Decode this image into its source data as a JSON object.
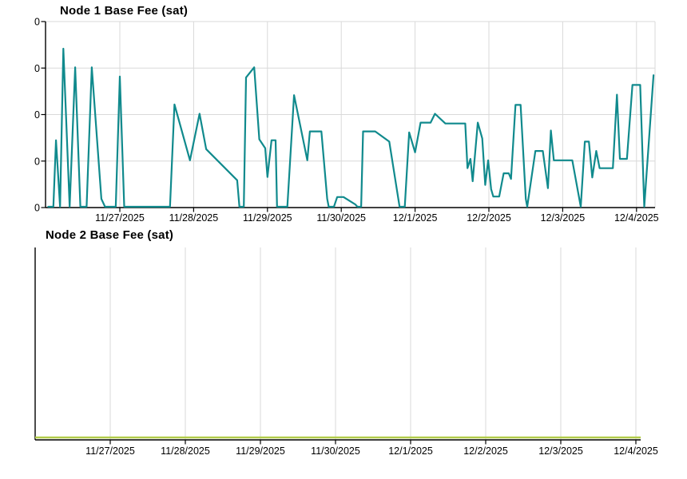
{
  "page": {
    "background_hex": "#ffffff",
    "grid_color_hex": "#d9d9d9",
    "axis_color_hex": "#000000",
    "text_color_hex": "#000000"
  },
  "chart_data": [
    {
      "type": "line",
      "title": "Node 1 Base Fee (sat)",
      "xlabel": "",
      "ylabel": "",
      "x_tick_labels": [
        "11/27/2025",
        "11/28/2025",
        "11/29/2025",
        "11/30/2025",
        "12/1/2025",
        "12/2/2025",
        "12/3/2025",
        "12/4/2025"
      ],
      "y_tick_labels": [
        "0",
        "0",
        "0",
        "0",
        "0"
      ],
      "ylim_grid_units": [
        0,
        4
      ],
      "x_domain_days": [
        0,
        8.27
      ],
      "x_axis_note": "day 0 = left edge (11/26/2025); x tick i sits at day i+1",
      "grid": "horizontal-and-vertical",
      "legend": "none",
      "series": [
        {
          "name": "Node 1 Base Fee",
          "color_hex": "#108a8d",
          "points_day_value": [
            [
              0.03,
              0
            ],
            [
              0.1,
              0
            ],
            [
              0.135,
              1.43
            ],
            [
              0.19,
              0
            ],
            [
              0.235,
              3.4
            ],
            [
              0.32,
              0
            ],
            [
              0.395,
              3.0
            ],
            [
              0.465,
              0
            ],
            [
              0.55,
              0
            ],
            [
              0.62,
              3.0
            ],
            [
              0.75,
              0.17
            ],
            [
              0.8,
              0
            ],
            [
              0.945,
              0
            ],
            [
              1.0,
              2.8
            ],
            [
              1.06,
              0
            ],
            [
              1.68,
              0
            ],
            [
              1.74,
              2.2
            ],
            [
              1.95,
              1.0
            ],
            [
              2.08,
              2.0
            ],
            [
              2.17,
              1.24
            ],
            [
              2.59,
              0.57
            ],
            [
              2.62,
              0
            ],
            [
              2.68,
              0
            ],
            [
              2.71,
              2.78
            ],
            [
              2.82,
              3.0
            ],
            [
              2.89,
              1.45
            ],
            [
              2.97,
              1.26
            ],
            [
              3.0,
              0.64
            ],
            [
              3.055,
              1.43
            ],
            [
              3.11,
              1.43
            ],
            [
              3.13,
              0
            ],
            [
              3.27,
              0
            ],
            [
              3.36,
              2.4
            ],
            [
              3.54,
              1.0
            ],
            [
              3.575,
              1.62
            ],
            [
              3.73,
              1.62
            ],
            [
              3.81,
              0.17
            ],
            [
              3.83,
              0
            ],
            [
              3.9,
              0
            ],
            [
              3.945,
              0.21
            ],
            [
              4.03,
              0.21
            ],
            [
              4.19,
              0.05
            ],
            [
              4.22,
              0
            ],
            [
              4.27,
              0
            ],
            [
              4.295,
              1.62
            ],
            [
              4.46,
              1.62
            ],
            [
              4.65,
              1.4
            ],
            [
              4.79,
              0
            ],
            [
              4.86,
              0
            ],
            [
              4.92,
              1.6
            ],
            [
              5.0,
              1.17
            ],
            [
              5.075,
              1.81
            ],
            [
              5.21,
              1.81
            ],
            [
              5.27,
              2.0
            ],
            [
              5.41,
              1.79
            ],
            [
              5.68,
              1.79
            ],
            [
              5.71,
              0.83
            ],
            [
              5.75,
              1.03
            ],
            [
              5.78,
              0.55
            ],
            [
              5.85,
              1.81
            ],
            [
              5.91,
              1.47
            ],
            [
              5.95,
              0.47
            ],
            [
              5.99,
              1.0
            ],
            [
              6.03,
              0.38
            ],
            [
              6.06,
              0.22
            ],
            [
              6.14,
              0.22
            ],
            [
              6.2,
              0.72
            ],
            [
              6.27,
              0.72
            ],
            [
              6.3,
              0.6
            ],
            [
              6.36,
              2.19
            ],
            [
              6.43,
              2.19
            ],
            [
              6.5,
              0.17
            ],
            [
              6.52,
              0
            ],
            [
              6.63,
              1.2
            ],
            [
              6.73,
              1.2
            ],
            [
              6.8,
              0.4
            ],
            [
              6.84,
              1.64
            ],
            [
              6.88,
              1.0
            ],
            [
              7.13,
              1.0
            ],
            [
              7.245,
              0
            ],
            [
              7.3,
              1.4
            ],
            [
              7.355,
              1.4
            ],
            [
              7.4,
              0.63
            ],
            [
              7.455,
              1.2
            ],
            [
              7.5,
              0.83
            ],
            [
              7.68,
              0.83
            ],
            [
              7.735,
              2.41
            ],
            [
              7.775,
              1.03
            ],
            [
              7.87,
              1.03
            ],
            [
              7.945,
              2.62
            ],
            [
              8.05,
              2.62
            ],
            [
              8.105,
              0
            ],
            [
              8.23,
              2.83
            ]
          ]
        }
      ]
    },
    {
      "type": "line",
      "title": "Node 2 Base Fee (sat)",
      "xlabel": "",
      "ylabel": "",
      "x_tick_labels": [
        "11/27/2025",
        "11/28/2025",
        "11/29/2025",
        "11/30/2025",
        "12/1/2025",
        "12/2/2025",
        "12/3/2025",
        "12/4/2025"
      ],
      "y_tick_labels": [],
      "x_domain_days": [
        0,
        8.06
      ],
      "grid": "vertical-only",
      "legend": "none",
      "series": [
        {
          "name": "Node 2 Base Fee",
          "color_hex": "#b2cc4a",
          "points_day_value": [
            [
              0,
              0
            ],
            [
              8.06,
              0
            ]
          ]
        }
      ]
    }
  ]
}
